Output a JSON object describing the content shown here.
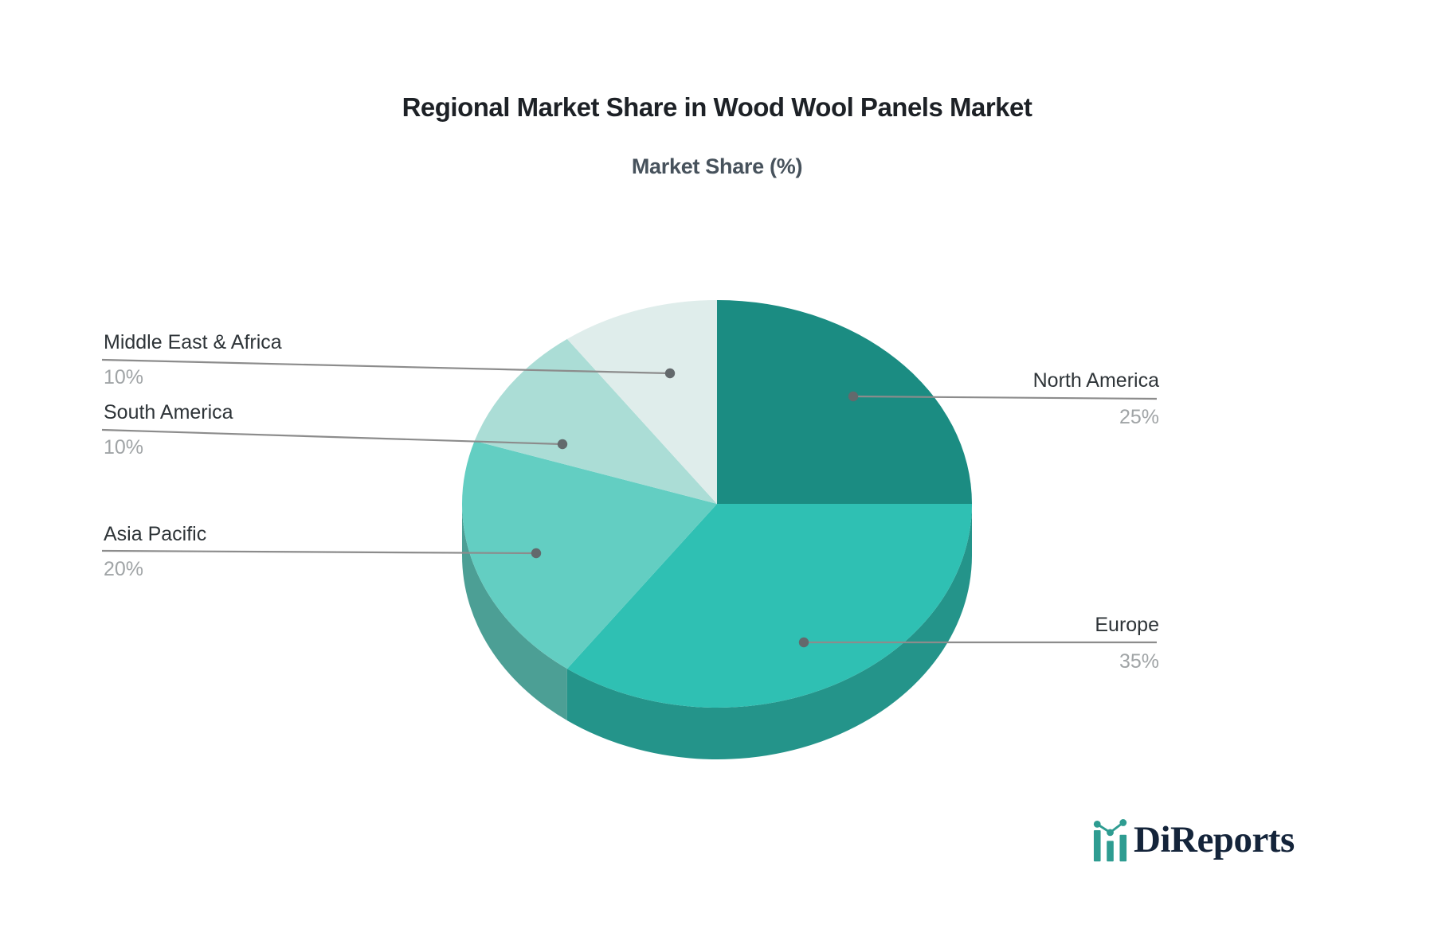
{
  "chart_data": {
    "type": "pie",
    "title": "Regional Market Share in Wood Wool Panels Market",
    "subtitle": "Market Share (%)",
    "unit": "%",
    "direction": "clockwise",
    "start_angle_deg": -90,
    "effect": "3d",
    "legend_position": "none",
    "labels": "outside-callouts",
    "series": [
      {
        "name": "North America",
        "value": 25,
        "value_label": "25%",
        "color": "#1b8c82"
      },
      {
        "name": "Europe",
        "value": 35,
        "value_label": "35%",
        "color": "#2fc0b3"
      },
      {
        "name": "Asia Pacific",
        "value": 20,
        "value_label": "20%",
        "color": "#63cec2"
      },
      {
        "name": "South America",
        "value": 10,
        "value_label": "10%",
        "color": "#abddd6"
      },
      {
        "name": "Middle East & Africa",
        "value": 10,
        "value_label": "10%",
        "color": "#dfedeb"
      }
    ],
    "callout_line_color": "#8c8c8c",
    "callout_dot_color": "#63696c"
  },
  "brand": {
    "name": "DiReports",
    "text_color": "#14243a",
    "icon": "bar-line-chart-icon",
    "icon_color": "#2e9c91"
  }
}
